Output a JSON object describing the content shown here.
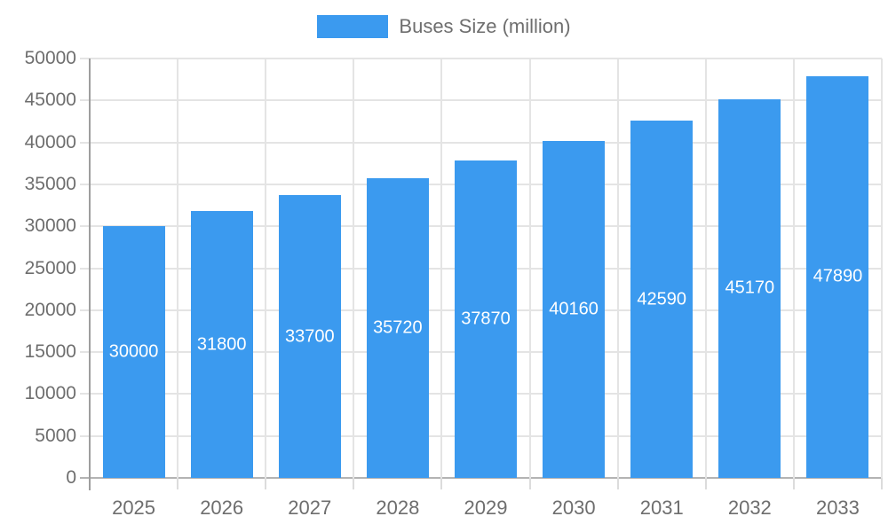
{
  "chart_data": {
    "type": "bar",
    "title": "",
    "legend": {
      "label": "Buses Size (million)",
      "position": "top"
    },
    "categories": [
      "2025",
      "2026",
      "2027",
      "2028",
      "2029",
      "2030",
      "2031",
      "2032",
      "2033"
    ],
    "series": [
      {
        "name": "Buses Size (million)",
        "values": [
          30000,
          31800,
          33700,
          35720,
          37870,
          40160,
          42590,
          45170,
          47890
        ]
      }
    ],
    "value_labels_visible": true,
    "xlabel": "",
    "ylabel": "",
    "ylim": [
      0,
      50000
    ],
    "ytick_step": 5000,
    "ytick_labels": [
      "0",
      "5000",
      "10000",
      "15000",
      "20000",
      "25000",
      "30000",
      "35000",
      "40000",
      "45000",
      "50000"
    ],
    "grid": true,
    "colors": {
      "bar": "#3b9aef",
      "grid": "#e4e4e4",
      "axis_line": "#9e9e9e",
      "baseline": "#b3b3b3",
      "tick_label": "#6e6e6e",
      "value_label": "#ffffff",
      "x_tick": "#dcdcdc"
    }
  }
}
